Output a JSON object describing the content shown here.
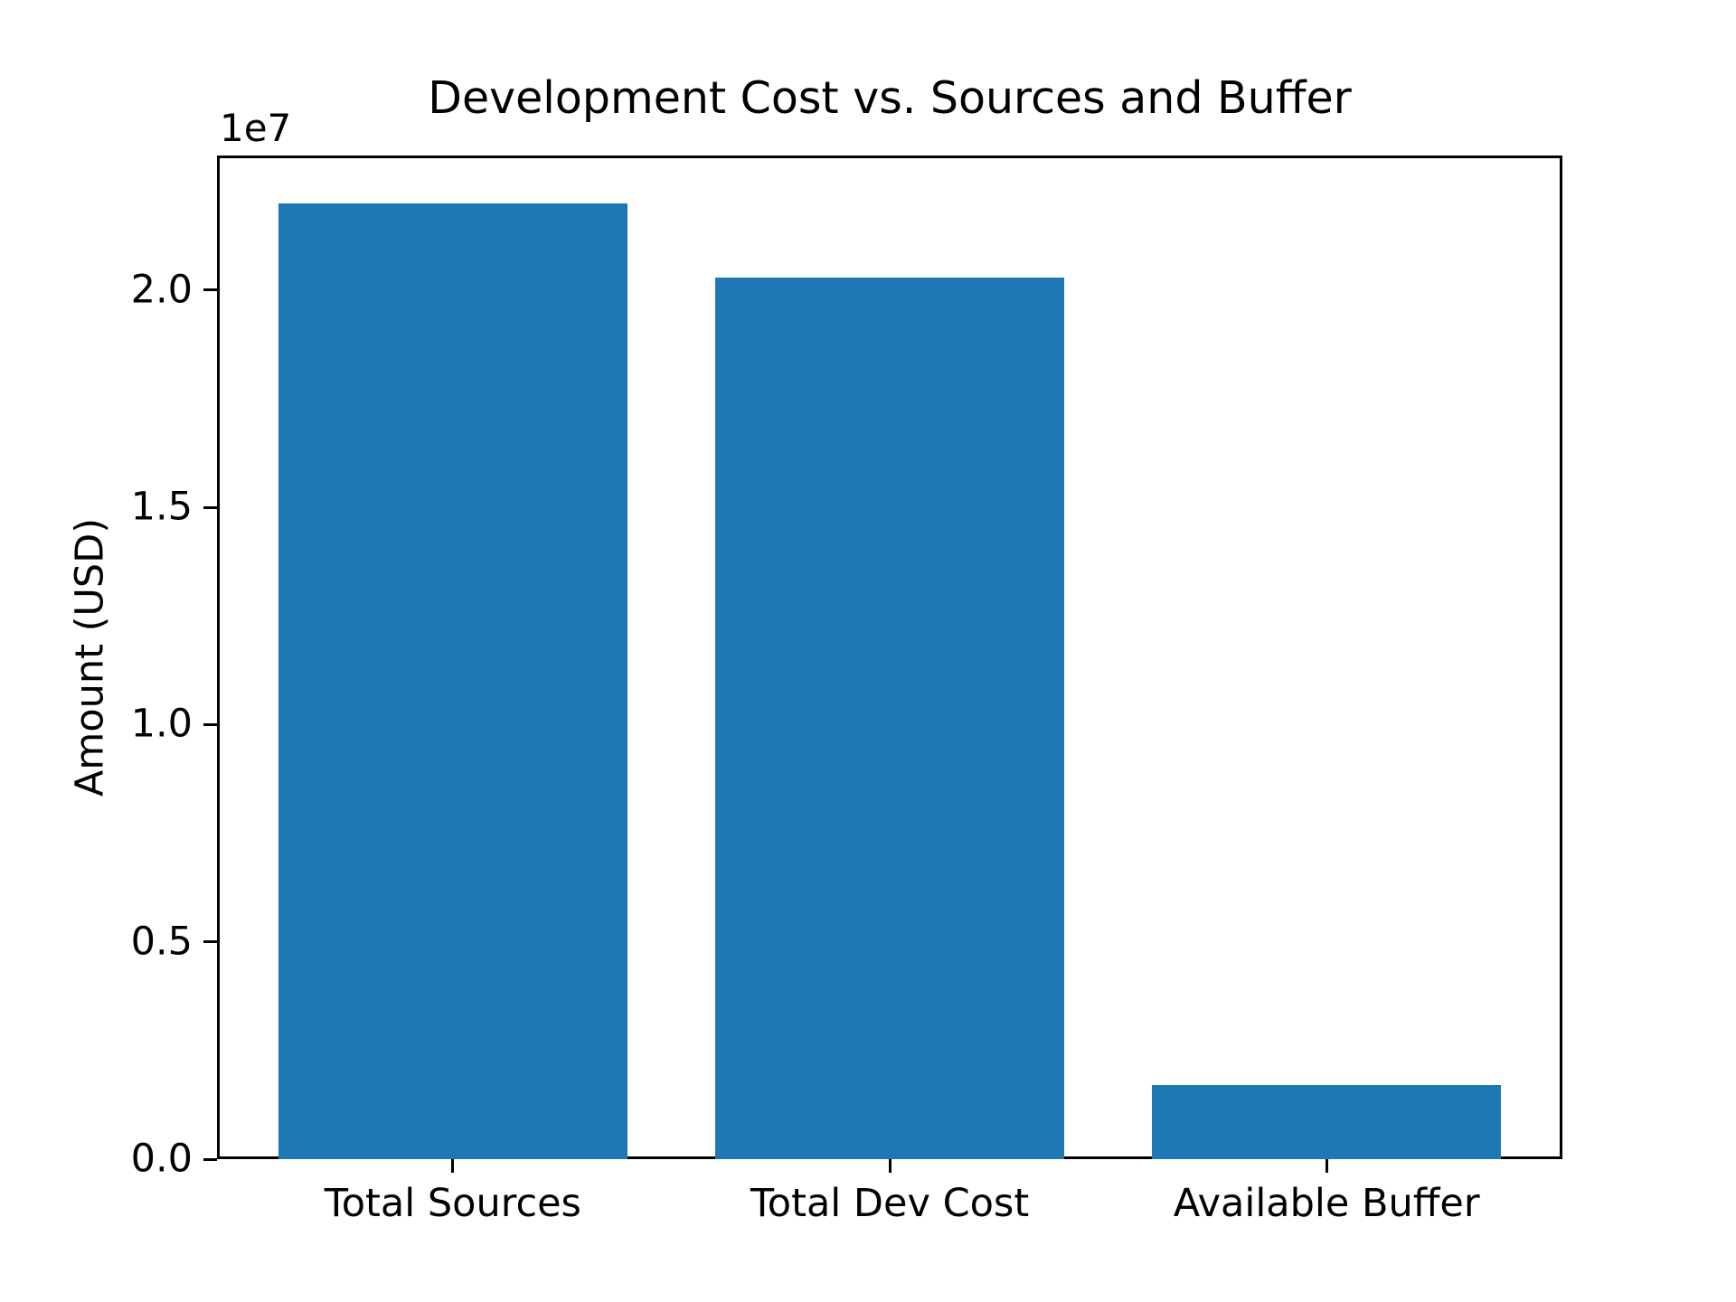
{
  "figure": {
    "background_color": "#ffffff",
    "text_color": "#000000"
  },
  "chart_data": {
    "type": "bar",
    "title": "Development Cost vs. Sources and Buffer",
    "xlabel": "",
    "ylabel": "Amount (USD)",
    "y_offset_text": "1e7",
    "categories": [
      "Total Sources",
      "Total Dev Cost",
      "Available Buffer"
    ],
    "values": [
      22000000,
      20300000,
      1700000
    ],
    "bar_color": "#1f77b4",
    "bar_width_units": 0.8,
    "xlim": [
      -0.54,
      2.54
    ],
    "ylim": [
      0,
      23100000
    ],
    "yticks": [
      {
        "value": 0,
        "label": "0.0"
      },
      {
        "value": 5000000,
        "label": "0.5"
      },
      {
        "value": 10000000,
        "label": "1.0"
      },
      {
        "value": 15000000,
        "label": "1.5"
      },
      {
        "value": 20000000,
        "label": "2.0"
      }
    ],
    "grid": false,
    "legend": null
  }
}
